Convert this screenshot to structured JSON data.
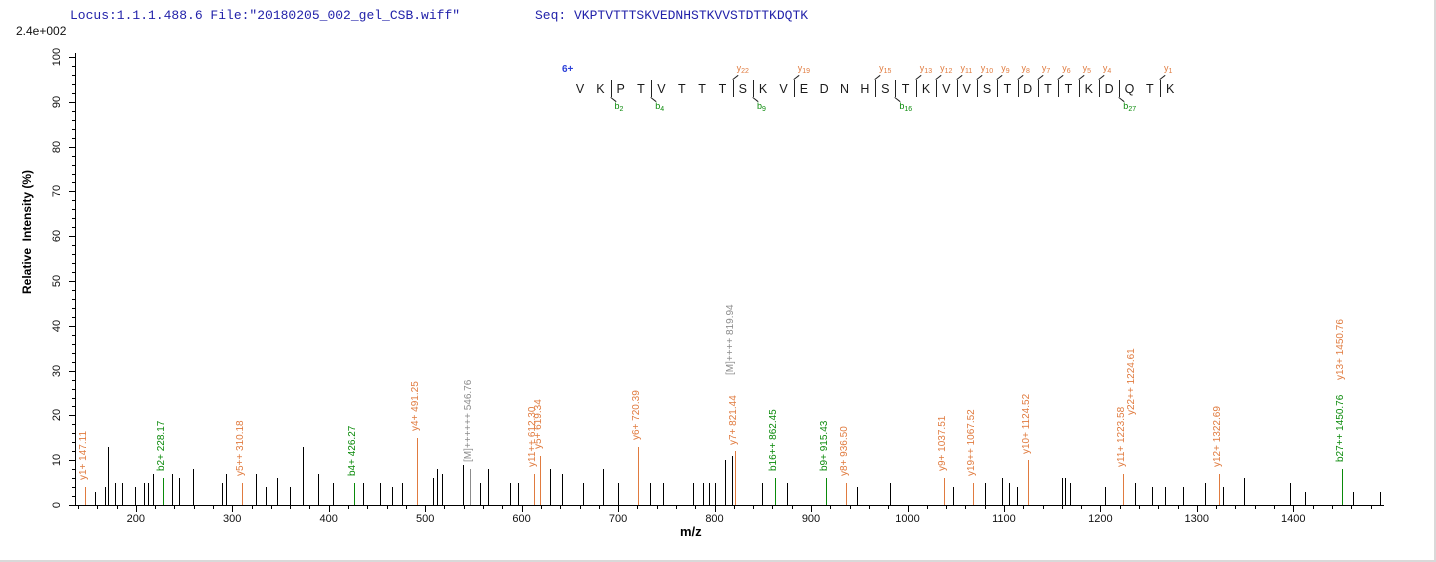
{
  "header": {
    "locus_file": "Locus:1.1.1.488.6 File:\"20180205_002_gel_CSB.wiff\"",
    "seq_label": "Seq: VKPTVTTTSKVEDNHSTKVVSTDTTKDQTK",
    "intensity_scale": "2.4e+002"
  },
  "colors": {
    "y_ion": "#e07b3f",
    "b_ion": "#0a8a0a",
    "precursor": "#8c8c8c",
    "peak_default": "#000000",
    "header_text": "#2222aa",
    "charge_label": "#2b3fd8",
    "axis": "#000000"
  },
  "sequence_panel": {
    "charge_label": "6+",
    "residues": "VKPTVTTTSKVEDNHSTKVVSTDTTKDQTK",
    "cleavages": [
      {
        "after": 2,
        "ion": "b",
        "num": 2
      },
      {
        "after": 4,
        "ion": "b",
        "num": 4
      },
      {
        "after": 8,
        "ion": "y",
        "num": 22
      },
      {
        "after": 9,
        "ion": "b",
        "num": 9
      },
      {
        "after": 11,
        "ion": "y",
        "num": 19
      },
      {
        "after": 15,
        "ion": "y",
        "num": 15
      },
      {
        "after": 16,
        "ion": "b",
        "num": 16
      },
      {
        "after": 17,
        "ion": "y",
        "num": 13
      },
      {
        "after": 18,
        "ion": "y",
        "num": 12
      },
      {
        "after": 19,
        "ion": "y",
        "num": 11
      },
      {
        "after": 20,
        "ion": "y",
        "num": 10
      },
      {
        "after": 21,
        "ion": "y",
        "num": 9
      },
      {
        "after": 22,
        "ion": "y",
        "num": 8
      },
      {
        "after": 23,
        "ion": "y",
        "num": 7
      },
      {
        "after": 24,
        "ion": "y",
        "num": 6
      },
      {
        "after": 25,
        "ion": "y",
        "num": 5
      },
      {
        "after": 26,
        "ion": "y",
        "num": 4
      },
      {
        "after": 27,
        "ion": "b",
        "num": 27
      },
      {
        "after": 29,
        "ion": "y",
        "num": 1
      }
    ]
  },
  "chart_data": {
    "type": "bar",
    "subtype": "ms2-spectrum-stick-plot",
    "title": "",
    "xlabel": "m/z",
    "ylabel": "Relative  Intensity (%)",
    "intensity_scale_label": "2.4e+002",
    "x_range": [
      137,
      1493
    ],
    "y_range": [
      0,
      100
    ],
    "x_major_tick_step": 100,
    "x_minor_tick_step": 20,
    "x_tick_labels": [
      200,
      300,
      400,
      500,
      600,
      700,
      800,
      900,
      1000,
      1100,
      1200,
      1300,
      1400
    ],
    "y_major_tick_step": 10,
    "y_minor_tick_step": 2,
    "y_tick_labels": [
      0,
      10,
      20,
      30,
      40,
      50,
      60,
      70,
      80,
      90,
      100
    ],
    "grid": false,
    "legend": false,
    "labeled_peaks": [
      {
        "label": "y1+ 147.11",
        "mz": 147.11,
        "intensity": 4,
        "ion": "y"
      },
      {
        "label": "b2+ 228.17",
        "mz": 228.17,
        "intensity": 6,
        "ion": "b"
      },
      {
        "label": "y5++ 310.18",
        "mz": 310.18,
        "intensity": 5,
        "ion": "y"
      },
      {
        "label": "b4+ 426.27",
        "mz": 426.27,
        "intensity": 5,
        "ion": "b"
      },
      {
        "label": "y4+ 491.25",
        "mz": 491.25,
        "intensity": 15,
        "ion": "y"
      },
      {
        "label": "[M]++++++ 546.76",
        "mz": 546.76,
        "intensity": 8,
        "ion": "M"
      },
      {
        "label": "y11++ 612.30",
        "mz": 612.3,
        "intensity": 7,
        "ion": "y"
      },
      {
        "label": "y5+ 619.34",
        "mz": 619.34,
        "intensity": 11,
        "ion": "y"
      },
      {
        "label": "y6+ 720.39",
        "mz": 720.39,
        "intensity": 13,
        "ion": "y"
      },
      {
        "label": "[M]++++ 819.94",
        "mz": 819.94,
        "intensity": 0,
        "ion": "M",
        "label_bottom": 29,
        "label_dx": -2
      },
      {
        "label": "y7+ 821.44",
        "mz": 821.44,
        "intensity": 12,
        "ion": "y"
      },
      {
        "label": "b16++ 862.45",
        "mz": 862.45,
        "intensity": 6,
        "ion": "b"
      },
      {
        "label": "b9+ 915.43",
        "mz": 915.43,
        "intensity": 6,
        "ion": "b"
      },
      {
        "label": "y8+ 936.50",
        "mz": 936.5,
        "intensity": 5,
        "ion": "y"
      },
      {
        "label": "y9+ 1037.51",
        "mz": 1037.51,
        "intensity": 6,
        "ion": "y"
      },
      {
        "label": "y19++ 1067.52",
        "mz": 1067.52,
        "intensity": 5,
        "ion": "y"
      },
      {
        "label": "y10+ 1124.52",
        "mz": 1124.52,
        "intensity": 10,
        "ion": "y"
      },
      {
        "label": "y11+ 1223.58",
        "mz": 1223.58,
        "intensity": 7,
        "ion": "y"
      },
      {
        "label": "y22++ 1224.61",
        "mz": 1224.61,
        "intensity": 0,
        "ion": "y",
        "label_bottom": 20,
        "label_dx": 9
      },
      {
        "label": "y12+ 1322.69",
        "mz": 1322.69,
        "intensity": 7,
        "ion": "y"
      },
      {
        "label": "b27++ 1450.76",
        "mz": 1450.76,
        "intensity": 8,
        "ion": "b"
      },
      {
        "label": "y13+ 1450.76",
        "mz": 1450.76,
        "intensity": 0,
        "ion": "y",
        "label_bottom": 28,
        "label_dx": 0
      }
    ],
    "unlabeled_peaks": [
      [
        158,
        3
      ],
      [
        168,
        4
      ],
      [
        171,
        13
      ],
      [
        178,
        5
      ],
      [
        186,
        5
      ],
      [
        199,
        4
      ],
      [
        208,
        5
      ],
      [
        213,
        5
      ],
      [
        218,
        7
      ],
      [
        238,
        7
      ],
      [
        245,
        6
      ],
      [
        259,
        8
      ],
      [
        289,
        5
      ],
      [
        294,
        7
      ],
      [
        325,
        7
      ],
      [
        335,
        4
      ],
      [
        346,
        6
      ],
      [
        360,
        4
      ],
      [
        373,
        13
      ],
      [
        389,
        7
      ],
      [
        404,
        5
      ],
      [
        435,
        5
      ],
      [
        453,
        5
      ],
      [
        466,
        4
      ],
      [
        476,
        5
      ],
      [
        508,
        6
      ],
      [
        512,
        8
      ],
      [
        517,
        7
      ],
      [
        539,
        9
      ],
      [
        557,
        5
      ],
      [
        565,
        8
      ],
      [
        588,
        5
      ],
      [
        596,
        5
      ],
      [
        629,
        8
      ],
      [
        642,
        7
      ],
      [
        664,
        5
      ],
      [
        684,
        8
      ],
      [
        700,
        5
      ],
      [
        733,
        5
      ],
      [
        747,
        5
      ],
      [
        778,
        5
      ],
      [
        788,
        5
      ],
      [
        794,
        5
      ],
      [
        800,
        5
      ],
      [
        811,
        10
      ],
      [
        818,
        11
      ],
      [
        849,
        5
      ],
      [
        875,
        5
      ],
      [
        948,
        4
      ],
      [
        982,
        5
      ],
      [
        1047,
        4
      ],
      [
        1080,
        5
      ],
      [
        1098,
        6
      ],
      [
        1105,
        5
      ],
      [
        1113,
        4
      ],
      [
        1160,
        6
      ],
      [
        1163,
        6
      ],
      [
        1168,
        5
      ],
      [
        1205,
        4
      ],
      [
        1236,
        5
      ],
      [
        1253,
        4
      ],
      [
        1267,
        4
      ],
      [
        1286,
        4
      ],
      [
        1308,
        5
      ],
      [
        1327,
        4
      ],
      [
        1349,
        6
      ],
      [
        1397,
        5
      ],
      [
        1412,
        3
      ],
      [
        1462,
        3
      ],
      [
        1490,
        3
      ]
    ]
  }
}
